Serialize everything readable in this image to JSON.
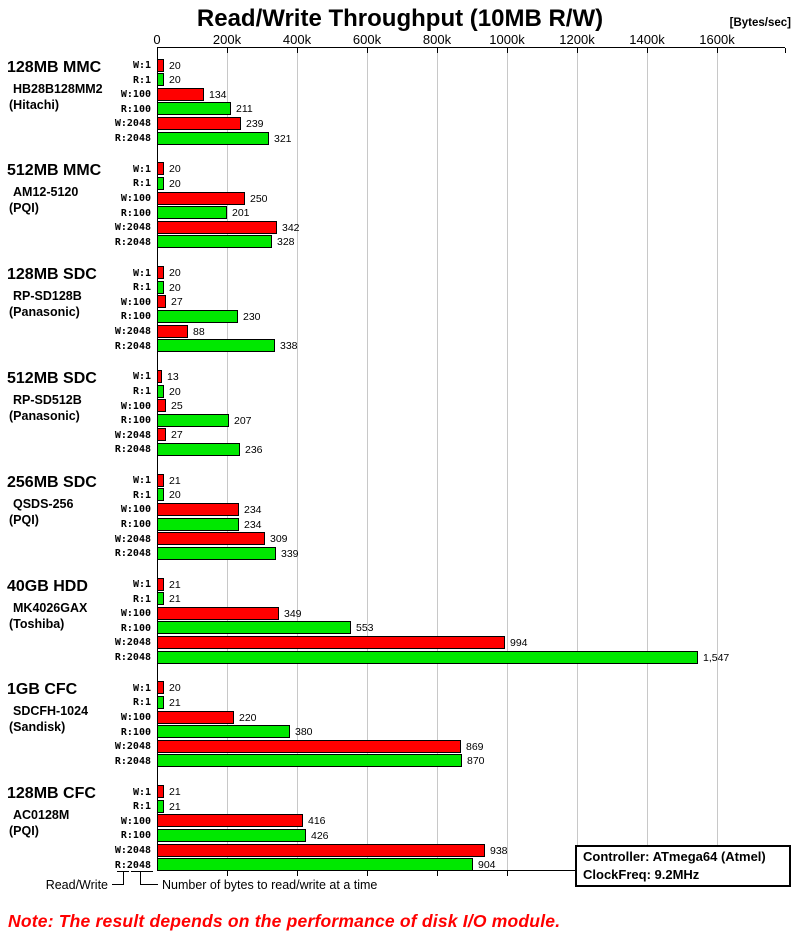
{
  "title": "Read/Write Throughput (10MB R/W)",
  "unit_label": "[Bytes/sec]",
  "chart_data": {
    "type": "bar",
    "orientation": "horizontal",
    "x_axis": {
      "tick_labels": [
        "0",
        "200k",
        "400k",
        "600k",
        "800k",
        "1000k",
        "1200k",
        "1400k",
        "1600k"
      ],
      "tick_values_k": [
        0,
        200,
        400,
        600,
        800,
        1000,
        1200,
        1400,
        1600
      ],
      "max_k": 1600,
      "grid": true
    },
    "bar_labels": [
      "W:1",
      "R:1",
      "W:100",
      "R:100",
      "W:2048",
      "R:2048"
    ],
    "series_colors": {
      "write": "#ff0000",
      "read": "#00e800"
    },
    "groups": [
      {
        "label": "128MB MMC",
        "model": "HB28B128MM2",
        "maker": "(Hitachi)",
        "values_k": [
          20,
          20,
          134,
          211,
          239,
          321
        ],
        "value_labels": [
          "20",
          "20",
          "134",
          "211",
          "239",
          "321"
        ]
      },
      {
        "label": "512MB MMC",
        "model": "AM12-5120",
        "maker": "(PQI)",
        "values_k": [
          20,
          20,
          250,
          201,
          342,
          328
        ],
        "value_labels": [
          "20",
          "20",
          "250",
          "201",
          "342",
          "328"
        ]
      },
      {
        "label": "128MB SDC",
        "model": "RP-SD128B",
        "maker": "(Panasonic)",
        "values_k": [
          20,
          20,
          27,
          230,
          88,
          338
        ],
        "value_labels": [
          "20",
          "20",
          "27",
          "230",
          "88",
          "338"
        ]
      },
      {
        "label": "512MB SDC",
        "model": "RP-SD512B",
        "maker": "(Panasonic)",
        "values_k": [
          13,
          20,
          25,
          207,
          27,
          236
        ],
        "value_labels": [
          "13",
          "20",
          "25",
          "207",
          "27",
          "236"
        ]
      },
      {
        "label": "256MB SDC",
        "model": "QSDS-256",
        "maker": "(PQI)",
        "values_k": [
          21,
          20,
          234,
          234,
          309,
          339
        ],
        "value_labels": [
          "21",
          "20",
          "234",
          "234",
          "309",
          "339"
        ]
      },
      {
        "label": "40GB HDD",
        "model": "MK4026GAX",
        "maker": "(Toshiba)",
        "values_k": [
          21,
          21,
          349,
          553,
          994,
          1547
        ],
        "value_labels": [
          "21",
          "21",
          "349",
          "553",
          "994",
          "1,547"
        ]
      },
      {
        "label": "1GB CFC",
        "model": "SDCFH-1024",
        "maker": "(Sandisk)",
        "values_k": [
          20,
          21,
          220,
          380,
          869,
          870
        ],
        "value_labels": [
          "20",
          "21",
          "220",
          "380",
          "869",
          "870"
        ]
      },
      {
        "label": "128MB CFC",
        "model": "AC0128M",
        "maker": "(PQI)",
        "values_k": [
          21,
          21,
          416,
          426,
          938,
          904
        ],
        "value_labels": [
          "21",
          "21",
          "416",
          "426",
          "938",
          "904"
        ]
      }
    ]
  },
  "legend": {
    "read_write": "Read/Write",
    "bytes_at_a_time": "Number of bytes to read/write at a time"
  },
  "info_box": {
    "controller": "Controller: ATmega64 (Atmel)",
    "clock": "ClockFreq: 9.2MHz"
  },
  "footnote": "Note: The result depends on the performance of disk I/O module."
}
